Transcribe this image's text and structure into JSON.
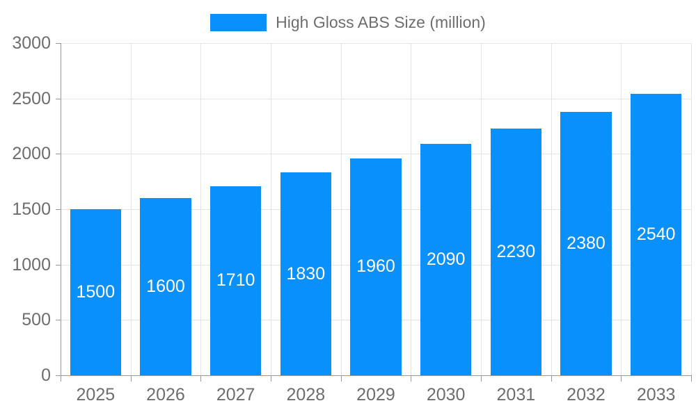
{
  "chart_data": {
    "type": "bar",
    "title": "High Gloss ABS Size (million)",
    "series_name": "High Gloss ABS Size (million)",
    "legend": [
      "High Gloss ABS Size (million)"
    ],
    "legend_position": "top",
    "categories": [
      "2025",
      "2026",
      "2027",
      "2028",
      "2029",
      "2030",
      "2031",
      "2032",
      "2033"
    ],
    "values": [
      1500,
      1600,
      1710,
      1830,
      1960,
      2090,
      2230,
      2380,
      2540
    ],
    "xlabel": "",
    "ylabel": "",
    "ylim": [
      0,
      3000
    ],
    "ytick_step": 500,
    "ytick_labels": [
      "0",
      "500",
      "1000",
      "1500",
      "2000",
      "2500",
      "3000"
    ],
    "grid": true,
    "bar_color": "#0a90fa",
    "value_label_color": "#ffffff",
    "text_color": "#6e6e6e",
    "grid_color": "#e3e3e3",
    "axis_line_color": "#999999"
  }
}
